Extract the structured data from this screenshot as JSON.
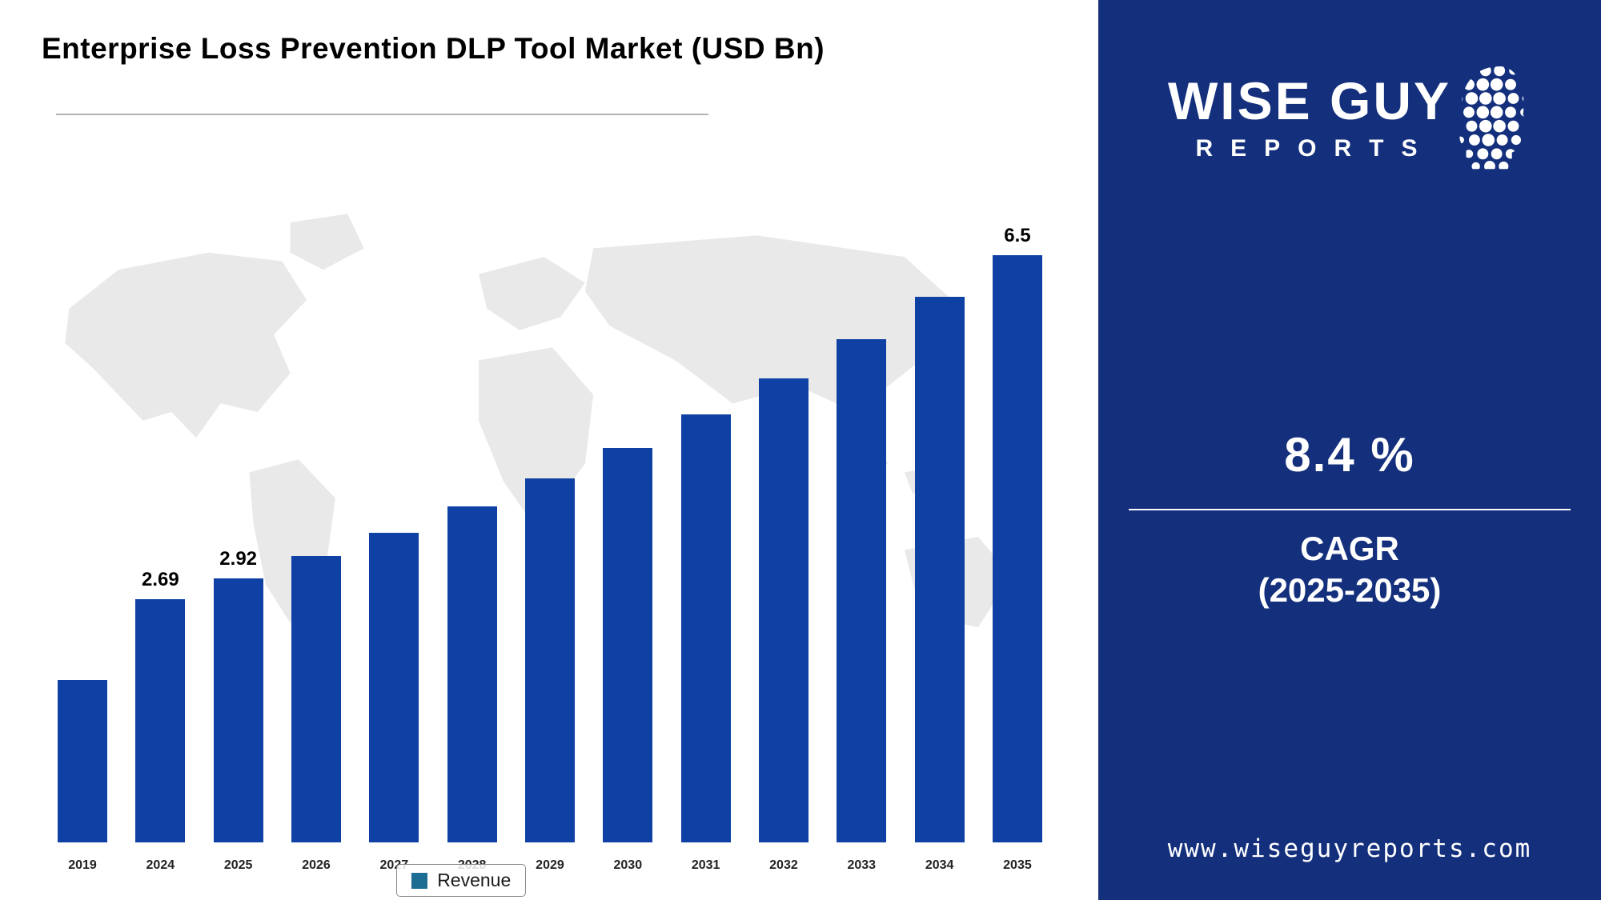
{
  "header": {
    "title": "Enterprise Loss Prevention DLP Tool Market (USD Bn)"
  },
  "chart_data": {
    "type": "bar",
    "title": "Enterprise Loss Prevention DLP Tool Market (USD Bn)",
    "categories": [
      "2019",
      "2024",
      "2025",
      "2026",
      "2027",
      "2028",
      "2029",
      "2030",
      "2031",
      "2032",
      "2033",
      "2034",
      "2035"
    ],
    "values": [
      1.8,
      2.69,
      2.92,
      3.17,
      3.43,
      3.72,
      4.03,
      4.37,
      4.74,
      5.14,
      5.57,
      6.04,
      6.5
    ],
    "data_labels": [
      "",
      "2.69",
      "2.92",
      "",
      "",
      "",
      "",
      "",
      "",
      "",
      "",
      "",
      "6.5"
    ],
    "ylim": [
      0,
      7
    ],
    "grid": false,
    "bar_color": "#0e41a3",
    "legend_position": "bottom",
    "legend": [
      {
        "label": "Revenue",
        "color": "#1b6d94"
      }
    ]
  },
  "sidebar": {
    "logo": {
      "line1": "WISE GUY",
      "line2": "REPORTS",
      "head_icon": "dotted-head-icon"
    },
    "stat_value": "8.4 %",
    "stat_label": "CAGR",
    "stat_range": "(2025-2035)",
    "website": "www.wiseguyreports.com"
  },
  "colors": {
    "sidebar_bg": "#14307d",
    "bar": "#0e41a3",
    "legend_swatch": "#1b6d94",
    "map": "#e9e9e9"
  }
}
